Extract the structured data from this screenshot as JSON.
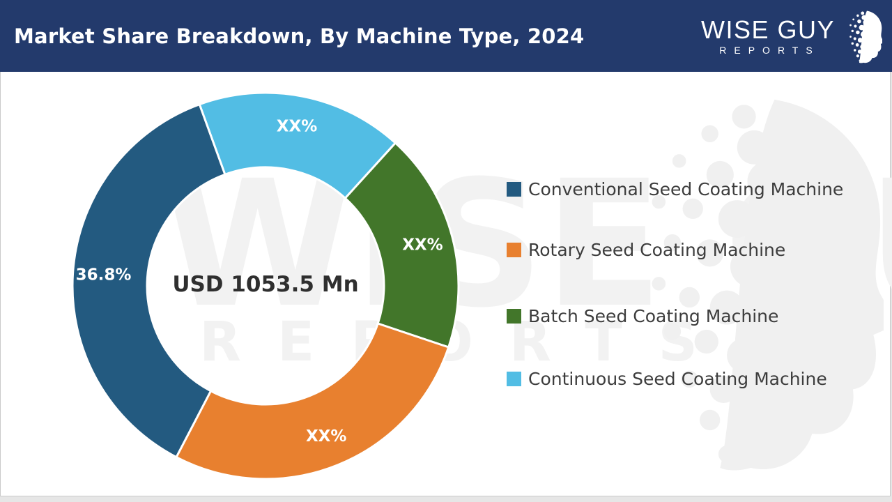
{
  "header": {
    "title": "Market Share Breakdown, By Machine Type, 2024",
    "logo": {
      "line1": "WISE GUY",
      "line2": "REPORTS"
    }
  },
  "watermark": {
    "line1": "WISE GUY",
    "line2": "REPORTS"
  },
  "chart_data": {
    "type": "pie",
    "subtype": "donut",
    "title": "Market Share Breakdown, By Machine Type, 2024",
    "center_label": "USD 1053.5 Mn",
    "start_angle_deg": -20,
    "direction": "clockwise",
    "legend_position": "right",
    "segments": [
      {
        "name": "Continuous Seed Coating Machine",
        "label": "XX%",
        "value_pct_est": 17.3,
        "color": "#52bde4"
      },
      {
        "name": "Batch Seed Coating Machine",
        "label": "XX%",
        "value_pct_est": 18.4,
        "color": "#42762a"
      },
      {
        "name": "Rotary Seed Coating Machine",
        "label": "XX%",
        "value_pct_est": 27.5,
        "color": "#e8802f"
      },
      {
        "name": "Conventional Seed Coating Machine",
        "label": "36.8%",
        "value_pct_est": 36.8,
        "color": "#235a80"
      }
    ],
    "legend": [
      {
        "label": "Conventional Seed Coating Machine",
        "color": "#235a80"
      },
      {
        "label": "Rotary Seed Coating Machine",
        "color": "#e8802f"
      },
      {
        "label": "Batch Seed Coating Machine",
        "color": "#42762a"
      },
      {
        "label": "Continuous Seed Coating Machine",
        "color": "#52bde4"
      }
    ]
  }
}
